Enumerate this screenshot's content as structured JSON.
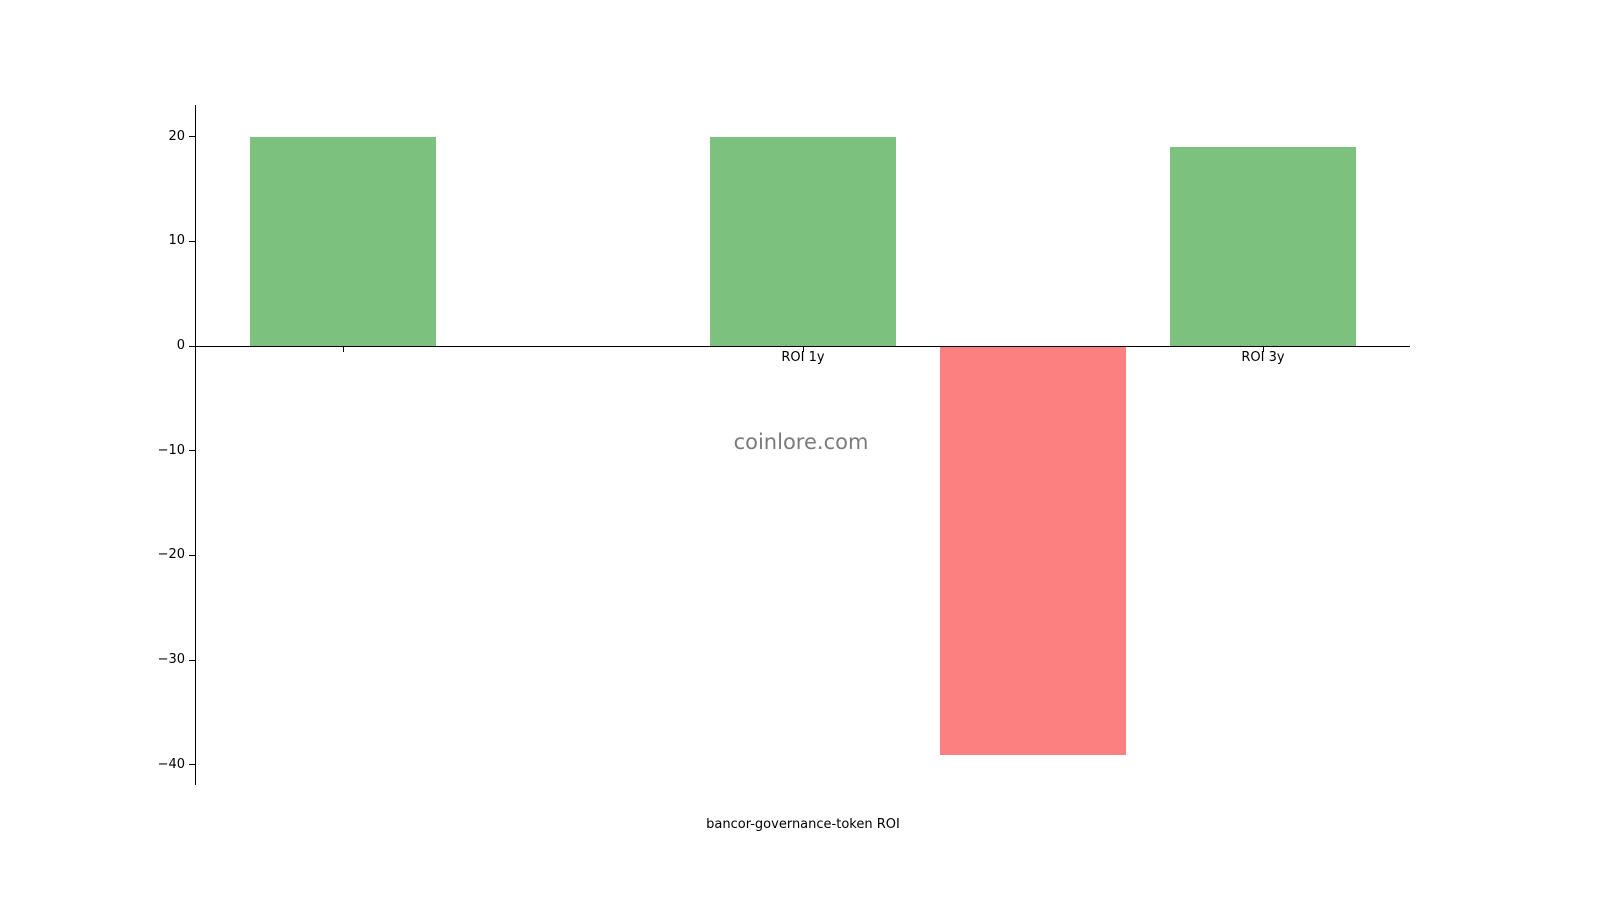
{
  "chart_data": {
    "type": "bar",
    "categories": [
      "",
      "ROI 1y",
      "",
      "ROI 3y"
    ],
    "values": [
      20,
      20,
      -39,
      19
    ],
    "bar_colors": [
      "#7cc17d",
      "#7cc17d",
      "#fc8080",
      "#7cc17d"
    ],
    "positive_color": "#7cc17d",
    "negative_color": "#fc8080",
    "title": "bancor-governance-token ROI",
    "watermark": "coinlore.com",
    "xlabel": "",
    "ylabel": "",
    "yticks": [
      20,
      10,
      0,
      -10,
      -20,
      -30,
      -40
    ],
    "ylim": [
      -42,
      23
    ],
    "grid": false,
    "legend": "none",
    "note_hidden_labels": "third bar extends below axis and covers its x tick and label"
  },
  "colors": {
    "axis": "#000000",
    "tick_text": "#000000",
    "watermark_text": "#7b7b7b"
  }
}
